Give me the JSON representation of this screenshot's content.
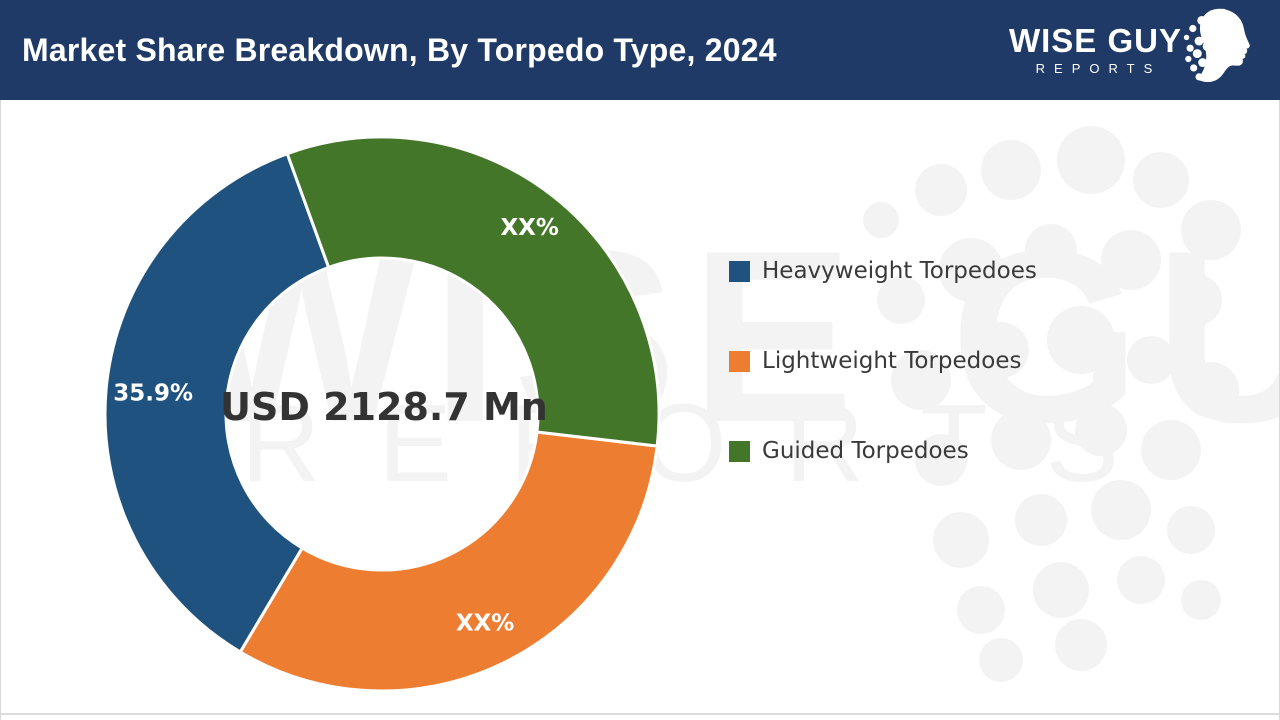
{
  "header": {
    "title": "Market Share Breakdown, By Torpedo Type, 2024",
    "bg_color": "#1f3a66",
    "logo": {
      "primary": "WISE GUY",
      "secondary": "REPORTS"
    }
  },
  "chart_data": {
    "type": "pie",
    "subtype": "donut",
    "title": "Market Share Breakdown, By Torpedo Type, 2024",
    "center_label": "USD 2128.7 Mn",
    "start_angle_deg": 110,
    "direction": "counterclockwise",
    "legend_position": "right",
    "outer_radius": 277,
    "inner_radius": 156,
    "label_radius": [
      0.83,
      0.84,
      0.86
    ],
    "series": [
      {
        "name": "Heavyweight Torpedoes",
        "value": 35.9,
        "label": "35.9%",
        "color": "#1f527e"
      },
      {
        "name": "Lightweight Torpedoes",
        "value": 31.7,
        "label": "XX%",
        "color": "#ed7d31"
      },
      {
        "name": "Guided Torpedoes",
        "value": 32.4,
        "label": "XX%",
        "color": "#44762a"
      }
    ]
  },
  "watermark": {
    "line1": "WISE GUY",
    "line2": "REPORTS"
  }
}
